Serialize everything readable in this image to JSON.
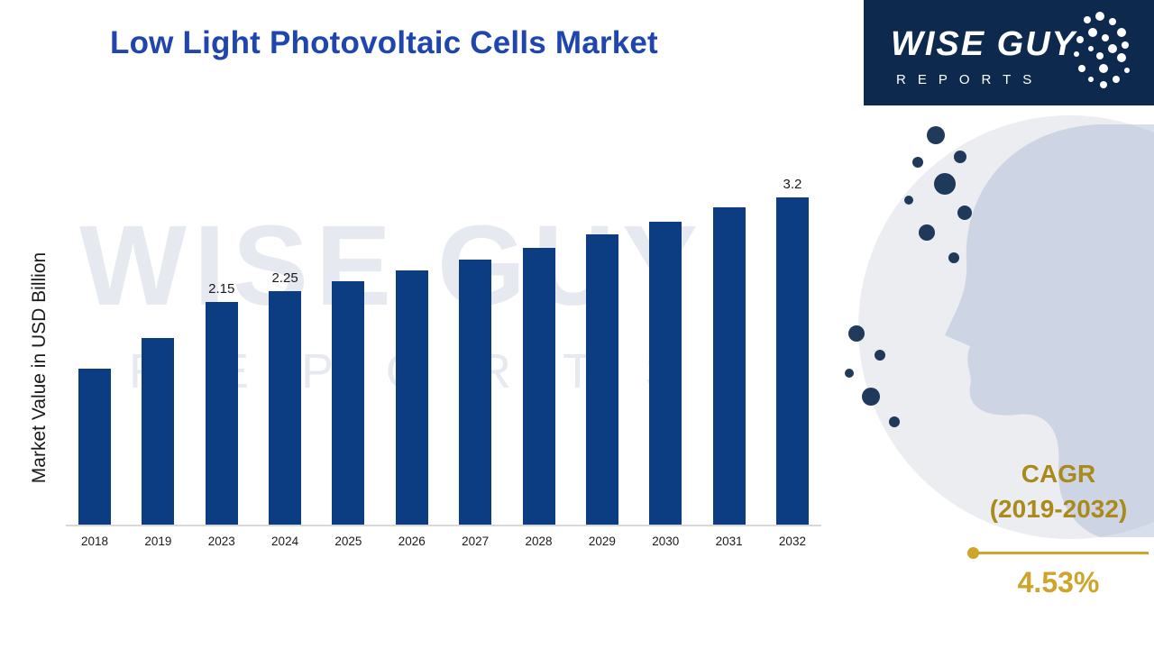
{
  "title": "Low Light Photovoltaic Cells Market",
  "logo": {
    "line1": "WISE GUY",
    "line2": "REPORTS"
  },
  "watermark": {
    "line1": "WISE GUY",
    "line2": "REPORTS"
  },
  "cagr": {
    "label_line1": "CAGR",
    "label_line2": "(2019-2032)",
    "value": "4.53%"
  },
  "colors": {
    "title": "#1e46ae",
    "bar": "#0c3c82",
    "navy": "#0d2a4e",
    "gold": "#cfa42a",
    "gold_dark": "#ab8a1c",
    "axis": "#d8d8d8",
    "text": "#1a1a1a",
    "watermark": "#8593b4"
  },
  "chart_data": {
    "type": "bar",
    "title": "Low Light Photovoltaic Cells Market",
    "xlabel": "",
    "ylabel": "Market Value in USD Billion",
    "ylim": [
      0,
      3.4
    ],
    "grid": false,
    "legend": "none",
    "categories": [
      "2018",
      "2019",
      "2023",
      "2024",
      "2025",
      "2026",
      "2027",
      "2028",
      "2029",
      "2030",
      "2031",
      "2032"
    ],
    "values": [
      1.5,
      1.8,
      2.15,
      2.25,
      2.35,
      2.45,
      2.56,
      2.67,
      2.8,
      2.92,
      3.06,
      3.2
    ],
    "bar_labels": [
      "",
      "",
      "2.15",
      "2.25",
      "",
      "",
      "",
      "",
      "",
      "",
      "",
      "3.2"
    ]
  }
}
